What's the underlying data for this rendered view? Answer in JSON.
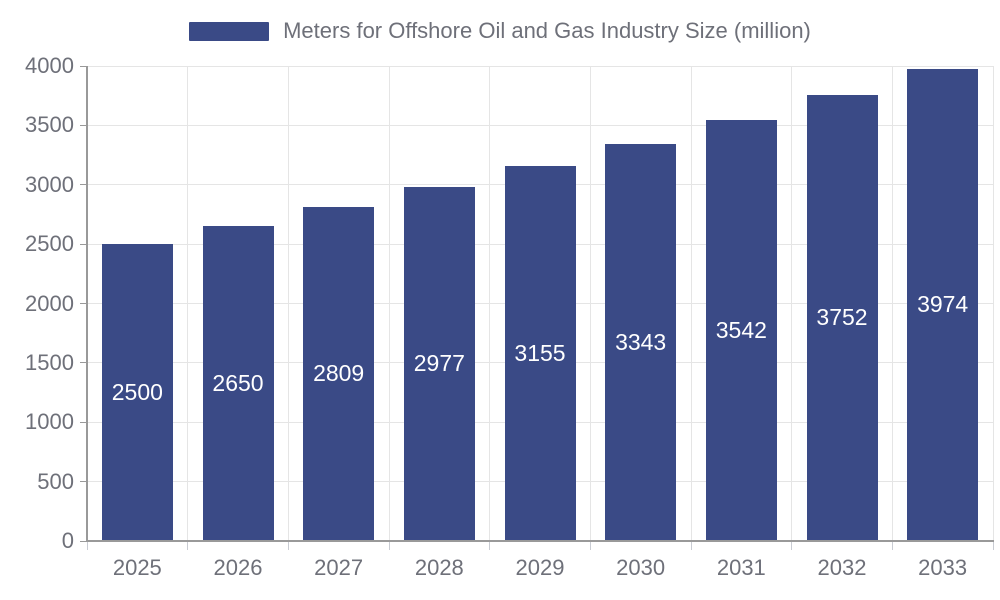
{
  "legend": {
    "label": "Meters for Offshore Oil and Gas Industry Size (million)"
  },
  "chart_data": {
    "type": "bar",
    "title": "Meters for Offshore Oil and Gas Industry Size (million)",
    "series_name": "Meters for Offshore Oil and Gas Industry Size (million)",
    "categories": [
      "2025",
      "2026",
      "2027",
      "2028",
      "2029",
      "2030",
      "2031",
      "2032",
      "2033"
    ],
    "values": [
      2500,
      2650,
      2809,
      2977,
      3155,
      3343,
      3542,
      3752,
      3974
    ],
    "xlabel": "",
    "ylabel": "",
    "ylim": [
      0,
      4000
    ],
    "yticks": [
      0,
      500,
      1000,
      1500,
      2000,
      2500,
      3000,
      3500,
      4000
    ],
    "grid": true,
    "legend_position": "top",
    "value_labels": "inside-center",
    "colors": {
      "bar": "#3A4A86",
      "value_label": "#FFFFFF",
      "axis_label": "#6E7079",
      "axis_line": "#999999",
      "gridline": "#E5E5E5",
      "x_tick": "#C9CCD3"
    }
  }
}
